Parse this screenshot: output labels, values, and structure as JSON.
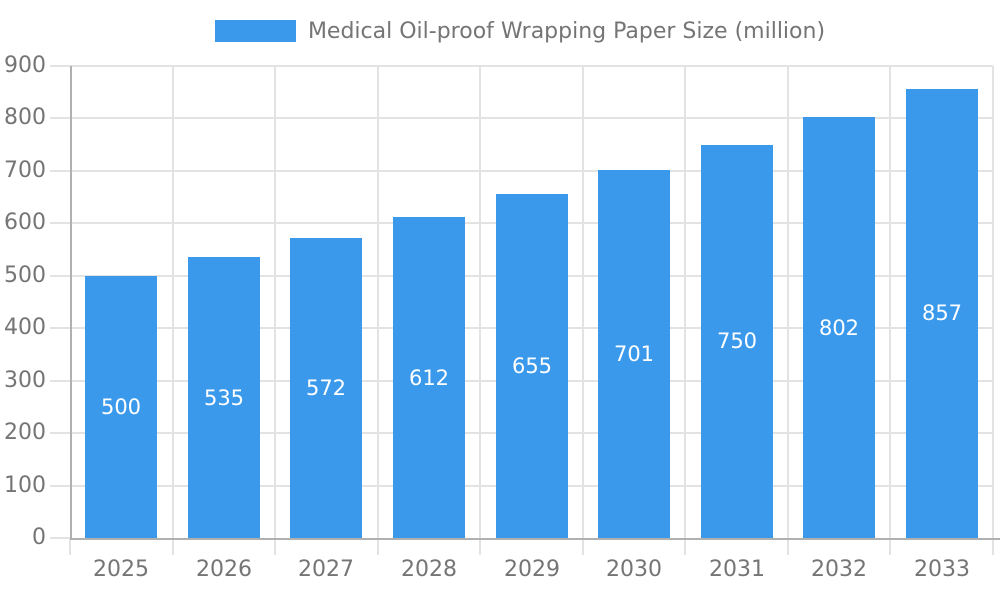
{
  "chart_data": {
    "type": "bar",
    "title": "Medical Oil-proof Wrapping Paper Size (million)",
    "categories": [
      "2025",
      "2026",
      "2027",
      "2028",
      "2029",
      "2030",
      "2031",
      "2032",
      "2033"
    ],
    "values": [
      500,
      535,
      572,
      612,
      655,
      701,
      750,
      802,
      857
    ],
    "xlabel": "",
    "ylabel": "",
    "ylim": [
      0,
      900
    ],
    "ytick_step": 100,
    "ytick_labels": [
      "0",
      "100",
      "200",
      "300",
      "400",
      "500",
      "600",
      "700",
      "800",
      "900"
    ],
    "grid": true,
    "legend_position": "top",
    "colors": {
      "bar": "#3B99EC",
      "bar_value_label": "#ffffff",
      "axis_text": "#757575",
      "gridline": "#e3e3e3",
      "axis_line": "#b0b0b0",
      "background": "#ffffff"
    }
  }
}
